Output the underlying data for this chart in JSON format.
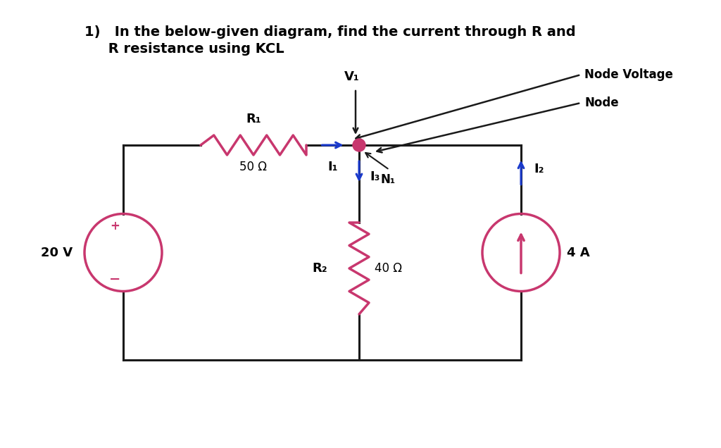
{
  "bg_color": "#ffffff",
  "circuit_color": "#1a1a1a",
  "pink_color": "#c8376e",
  "blue_color": "#1a3acc",
  "node_dot_color": "#c8376e",
  "title_line1": "1)   In the below-given diagram, find the current through R and",
  "title_line2": "     R resistance using KCL",
  "label_R1": "R₁",
  "label_50ohm": "50 Ω",
  "label_R2": "R₂",
  "label_40ohm": "40 Ω",
  "label_I1": "I₁",
  "label_I2": "I₂",
  "label_I3": "I₃",
  "label_N1": "N₁",
  "label_V1": "V₁",
  "label_20V": "20 V",
  "label_4A": "4 A",
  "label_node": "Node",
  "label_node_voltage": "Node Voltage",
  "title_fontsize": 14,
  "label_fontsize": 13,
  "small_fontsize": 12
}
